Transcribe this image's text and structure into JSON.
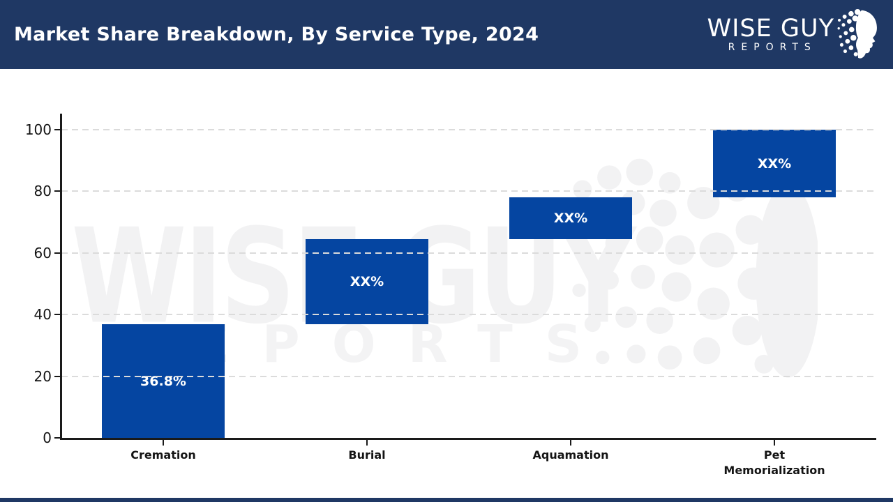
{
  "header": {
    "title": "Market Share Breakdown, By Service Type, 2024",
    "logo": {
      "name": "WISE GUY",
      "suffix": "REPORTS"
    }
  },
  "watermark": {
    "line1": "WISE GUY",
    "line2": "REPORTS"
  },
  "colors": {
    "header_bg": "#1F3864",
    "footer_bg": "#1F3864",
    "bar_fill": "#0545A1",
    "bar_label_text": "#FFFFFF",
    "grid_line": "#DBDBDB",
    "axis_line": "#1A1A1A",
    "tick_label_text": "#141414",
    "watermark_text": "#F2F2F3"
  },
  "chart_data": {
    "type": "bar",
    "variant": "waterfall",
    "title": "Market Share Breakdown, By Service Type, 2024",
    "categories": [
      "Cremation",
      "Burial",
      "Aquamation",
      "Pet\nMemorialization"
    ],
    "segments": [
      {
        "category": "Cremation",
        "start": 0,
        "end": 36.8,
        "label": "36.8%"
      },
      {
        "category": "Burial",
        "start": 36.8,
        "end": 64.5,
        "label": "XX%"
      },
      {
        "category": "Aquamation",
        "start": 64.5,
        "end": 78,
        "label": "XX%"
      },
      {
        "category": "Pet Memorialization",
        "start": 78,
        "end": 100,
        "label": "XX%"
      }
    ],
    "yticks": [
      0,
      20,
      40,
      60,
      80,
      100
    ],
    "ylim": [
      0,
      105
    ],
    "xlabel": "",
    "ylabel": "",
    "unit": "percent",
    "grid": "horizontal-dashed",
    "grid_above_bars": true,
    "legend": "none"
  }
}
